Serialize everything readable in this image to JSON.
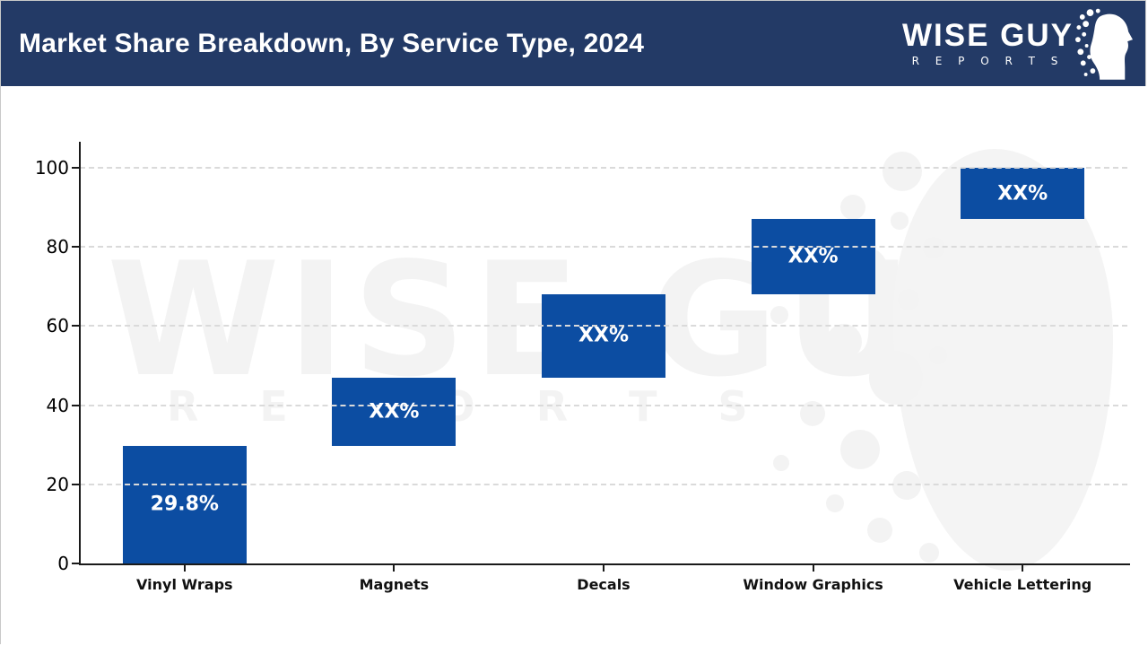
{
  "header": {
    "title": "Market Share Breakdown, By Service Type, 2024",
    "bg_color": "#233a66",
    "logo": {
      "line1": "WISE GUY",
      "line2": "R E P O R T S"
    }
  },
  "watermark": {
    "line1": "WISE GUY",
    "line2": "R E P O R T S"
  },
  "chart_data": {
    "type": "bar",
    "subtype": "waterfall",
    "title": "Market Share Breakdown, By Service Type, 2024",
    "xlabel": "",
    "ylabel": "",
    "categories": [
      "Vinyl Wraps",
      "Magnets",
      "Decals",
      "Window Graphics",
      "Vehicle Lettering"
    ],
    "segments": [
      {
        "category": "Vinyl Wraps",
        "start": 0,
        "end": 29.8,
        "label": "29.8%"
      },
      {
        "category": "Magnets",
        "start": 29.8,
        "end": 47,
        "label": "XX%"
      },
      {
        "category": "Decals",
        "start": 47,
        "end": 68,
        "label": "XX%"
      },
      {
        "category": "Window Graphics",
        "start": 68,
        "end": 87,
        "label": "XX%"
      },
      {
        "category": "Vehicle Lettering",
        "start": 87,
        "end": 100,
        "label": "XX%"
      }
    ],
    "yticks": [
      0,
      20,
      40,
      60,
      80,
      100
    ],
    "ylim": [
      0,
      107
    ],
    "bar_color": "#0c4da2",
    "grid": true,
    "gridline_style": "dashed",
    "legend_position": "none"
  }
}
